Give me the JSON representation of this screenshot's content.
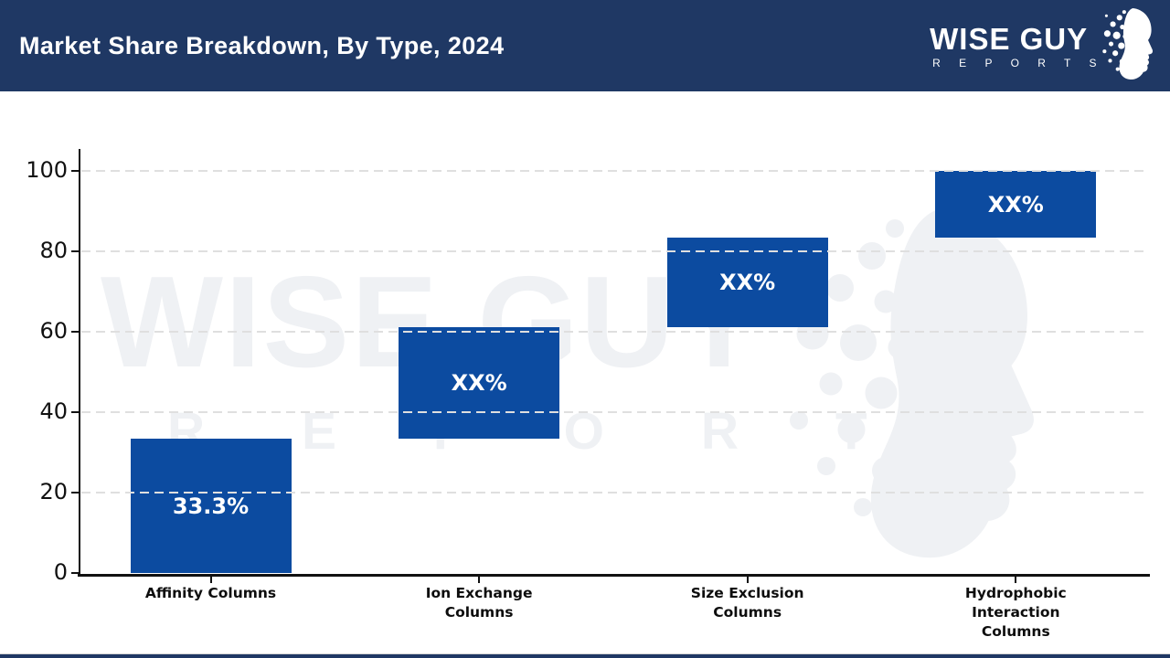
{
  "header": {
    "title": "Market Share Breakdown, By Type, 2024",
    "bg_color": "#1f3864",
    "logo": {
      "line1": "WISE GUY",
      "line2": "R E P O R T S"
    }
  },
  "watermark": {
    "line1": "WISE GUY",
    "line2": "R E P O R T S",
    "color": "#eff1f4"
  },
  "chart_data": {
    "type": "bar",
    "subtype": "floating-waterfall",
    "title": "Market Share Breakdown, By Type, 2024",
    "categories": [
      "Affinity Columns",
      "Ion Exchange Columns",
      "Size Exclusion Columns",
      "Hydrophobic Interaction Columns"
    ],
    "category_tick_lines": [
      [
        "Affinity Columns"
      ],
      [
        "Ion Exchange",
        "Columns"
      ],
      [
        "Size Exclusion",
        "Columns"
      ],
      [
        "Hydrophobic",
        "Interaction",
        "Columns"
      ]
    ],
    "segments": [
      {
        "start": 0,
        "end": 33.3,
        "label": "33.3%"
      },
      {
        "start": 33.3,
        "end": 61.1,
        "label": "XX%"
      },
      {
        "start": 61.1,
        "end": 83.3,
        "label": "XX%"
      },
      {
        "start": 83.3,
        "end": 100,
        "label": "XX%"
      }
    ],
    "ylim": [
      0,
      100
    ],
    "yticks": [
      0,
      20,
      40,
      60,
      80,
      100
    ],
    "xlabel": "",
    "ylabel": "",
    "legend": "none",
    "grid": {
      "axis": "y",
      "style": "dashed",
      "color": "#dfdfdf"
    },
    "bar_color": "#0c4ba0",
    "bar_label_color": "#ffffff",
    "axis_color": "#111111"
  },
  "footer": {
    "bar_color": "#1f3864"
  }
}
